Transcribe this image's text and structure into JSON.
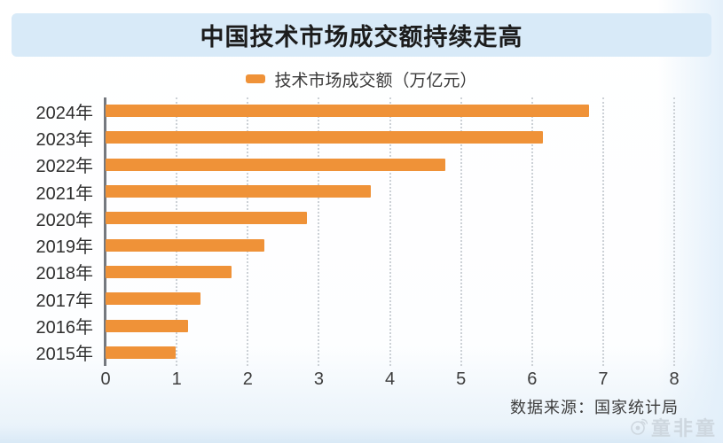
{
  "title_banner": {
    "text": "中国技术市场成交额持续走高"
  },
  "legend": {
    "label": "技术市场成交额（万亿元）",
    "swatch_color": "#ef9238"
  },
  "chart_data": {
    "type": "bar",
    "orientation": "horizontal",
    "title": "中国技术市场成交额持续走高",
    "series_name": "技术市场成交额（万亿元）",
    "categories": [
      "2024年",
      "2023年",
      "2022年",
      "2021年",
      "2020年",
      "2019年",
      "2018年",
      "2017年",
      "2016年",
      "2015年"
    ],
    "values": [
      6.8,
      6.15,
      4.78,
      3.73,
      2.83,
      2.24,
      1.77,
      1.34,
      1.16,
      0.98
    ],
    "xlabel": "",
    "ylabel": "",
    "xlim": [
      0,
      8
    ],
    "x_ticks": [
      0,
      1,
      2,
      3,
      4,
      5,
      6,
      7,
      8
    ],
    "grid": "vertical-dotted",
    "legend_position": "top-center",
    "bar_color": "#ef9238",
    "axis_color": "#75797f",
    "gridline_color": "#ccd1d6"
  },
  "source_note": {
    "text": "数据来源：国家统计局"
  },
  "watermark": {
    "text": "童非童",
    "icon": "weibo-camera-icon"
  },
  "colors": {
    "title_band": "#d8eaf8",
    "background": "#fdfeff",
    "accent_orange": "#ef9238"
  }
}
